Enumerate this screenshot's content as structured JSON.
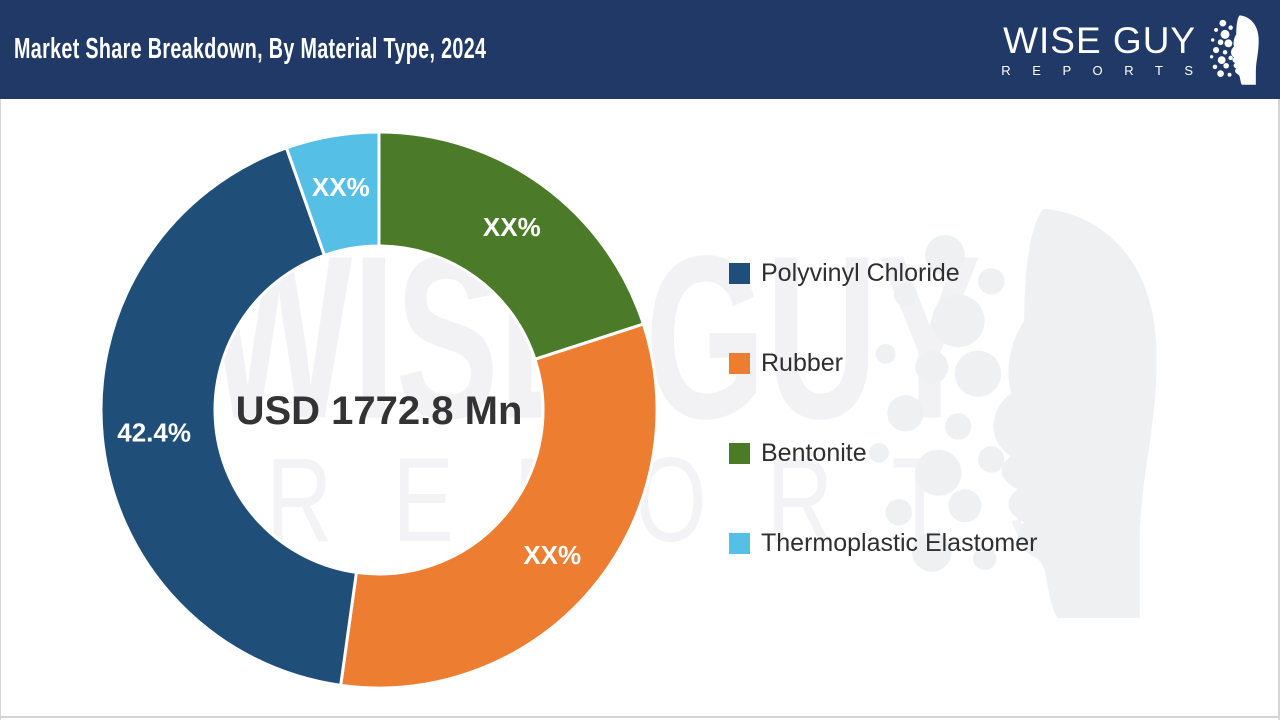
{
  "header": {
    "title": "Market Share Breakdown, By Material Type, 2024",
    "logo": {
      "line1": "WISE GUY",
      "line2": "R E P O R T S"
    },
    "bg_color": "#213966"
  },
  "watermark": {
    "line1": "WISE GUY",
    "line2": "REPORTS"
  },
  "chart_data": {
    "type": "pie",
    "subtype": "donut",
    "title": "Market Share Breakdown, By Material Type, 2024",
    "center_label": "USD 1772.8 Mn",
    "units": "percent of market share",
    "direction": "clockwise",
    "start_angle_deg": 0,
    "legend_position": "right",
    "slices": [
      {
        "name": "Bentonite",
        "label": "XX%",
        "value": 20.0,
        "color": "#4b7a29"
      },
      {
        "name": "Rubber",
        "label": "XX%",
        "value": 32.2,
        "color": "#ed7d31"
      },
      {
        "name": "Polyvinyl Chloride",
        "label": "42.4%",
        "value": 42.4,
        "color": "#1f4e79"
      },
      {
        "name": "Thermoplastic Elastomer",
        "label": "XX%",
        "value": 5.4,
        "color": "#55bfe6"
      }
    ]
  },
  "legend": {
    "items": [
      {
        "label": "Polyvinyl Chloride",
        "color": "#1f4e79"
      },
      {
        "label": "Rubber",
        "color": "#ed7d31"
      },
      {
        "label": "Bentonite",
        "color": "#4b7a29"
      },
      {
        "label": "Thermoplastic Elastomer",
        "color": "#55bfe6"
      }
    ]
  }
}
